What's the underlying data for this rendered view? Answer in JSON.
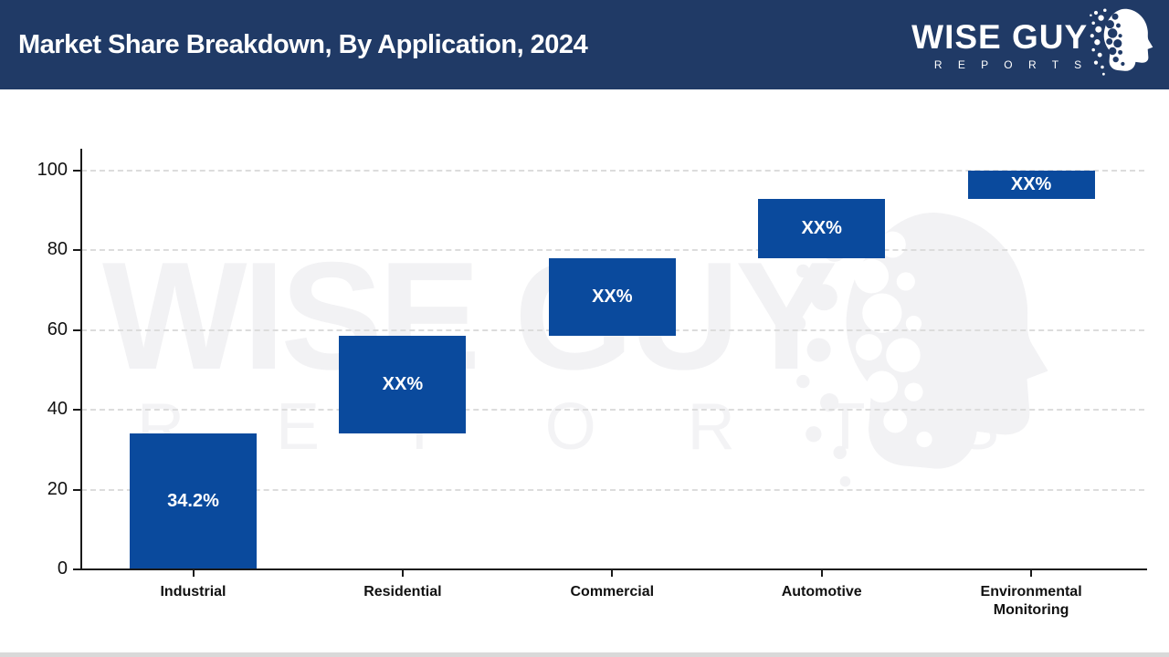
{
  "header": {
    "title": "Market Share Breakdown, By Application, 2024",
    "logo": {
      "name": "WISE GUY",
      "sub": "R E P O R T S",
      "icon": "wise-guy-head-icon"
    }
  },
  "watermark": {
    "line1": "WISE GUY",
    "line2": "R E P O R T S",
    "icon": "wise-guy-head-watermark-icon"
  },
  "chart_data": {
    "type": "bar",
    "subtype": "waterfall",
    "title": "Market Share Breakdown, By Application, 2024",
    "categories": [
      "Industrial",
      "Residential",
      "Commercial",
      "Automotive",
      "Environmental Monitoring"
    ],
    "segments": [
      {
        "category": "Industrial",
        "start": 0,
        "end": 34.2,
        "value": 34.2,
        "label": "34.2%"
      },
      {
        "category": "Residential",
        "start": 34.2,
        "end": 58.5,
        "value": 24.3,
        "label": "XX%"
      },
      {
        "category": "Commercial",
        "start": 58.5,
        "end": 78.1,
        "value": 19.6,
        "label": "XX%"
      },
      {
        "category": "Automotive",
        "start": 78.1,
        "end": 92.8,
        "value": 14.7,
        "label": "XX%"
      },
      {
        "category": "Environmental Monitoring",
        "start": 92.8,
        "end": 100,
        "value": 7.2,
        "label": "XX%"
      }
    ],
    "ylim": [
      0,
      100
    ],
    "yticks": [
      0,
      20,
      40,
      60,
      80,
      100
    ],
    "grid": "horizontal-dashed",
    "legend": "none",
    "xlabel": "",
    "ylabel": ""
  },
  "colors": {
    "header_bg": "#203a66",
    "bar": "#0a4a9d",
    "bar_label": "#ffffff",
    "axis": "#1a1a1a",
    "grid": "#dcdcdc",
    "watermark": "#f2f2f4",
    "footer_strip": "#d9d9d9"
  }
}
